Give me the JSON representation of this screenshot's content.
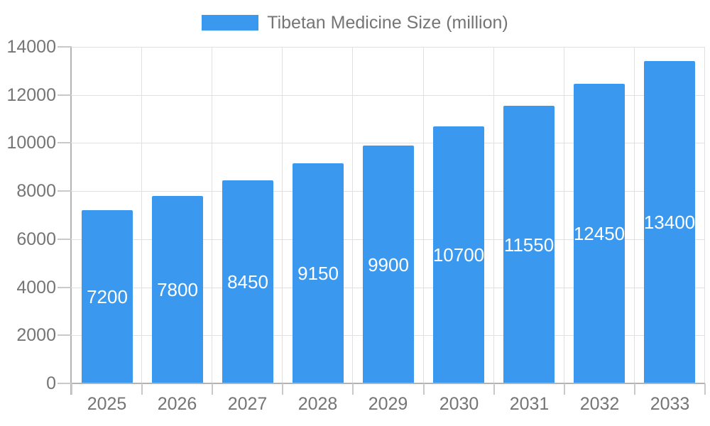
{
  "legend": {
    "label": "Tibetan Medicine Size (million)"
  },
  "chart_data": {
    "type": "bar",
    "title": "Tibetan Medicine Size (million)",
    "categories": [
      "2025",
      "2026",
      "2027",
      "2028",
      "2029",
      "2030",
      "2031",
      "2032",
      "2033"
    ],
    "values": [
      7200,
      7800,
      8450,
      9150,
      9900,
      10700,
      11550,
      12450,
      13400
    ],
    "xlabel": "",
    "ylabel": "",
    "ylim": [
      0,
      14000
    ],
    "ytick_step": 2000,
    "yticks": [
      0,
      2000,
      4000,
      6000,
      8000,
      10000,
      12000,
      14000
    ],
    "grid": true,
    "legend_position": "top-center",
    "value_labels": "inside-center",
    "colors": {
      "bar": "#3A99EE",
      "grid": "#e0e0e0",
      "axis": "#b3b3b3",
      "tick": "#c9c9c9",
      "text": "#757575",
      "value_label": "#ffffff",
      "background": "#ffffff"
    }
  }
}
